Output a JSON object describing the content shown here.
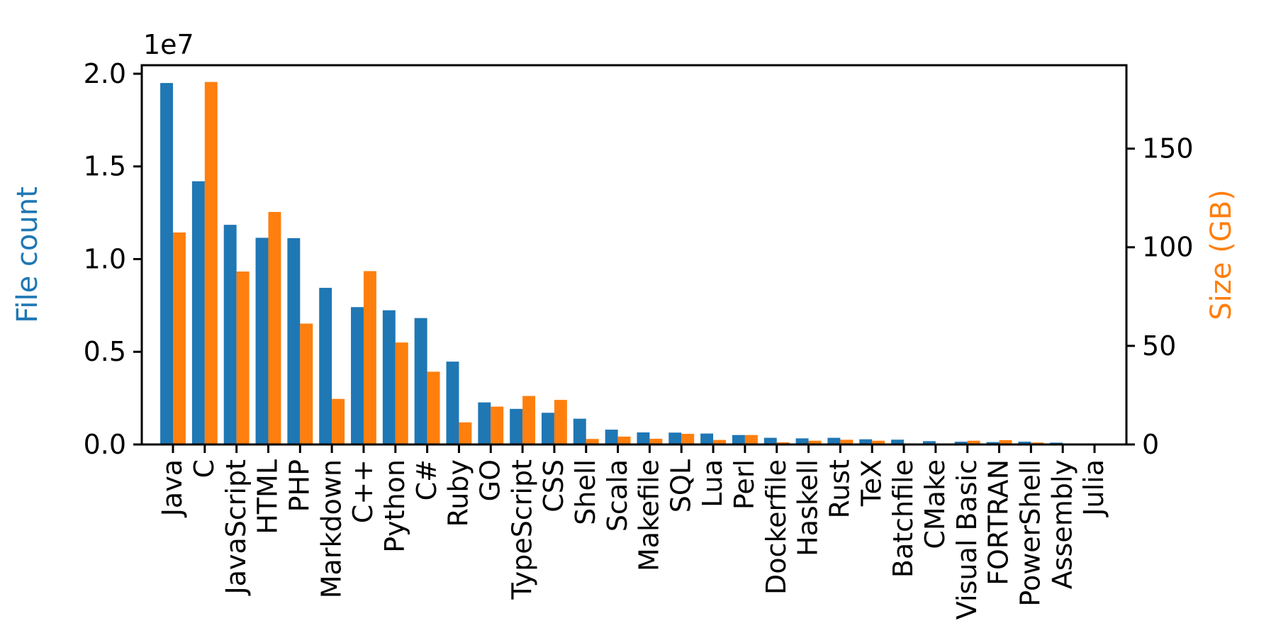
{
  "figure": {
    "background": "#ffffff",
    "text_color": "#000000"
  },
  "chart_data": {
    "type": "bar",
    "subtype": "grouped-dual-axis",
    "title": "",
    "grid": false,
    "legend_position": "none",
    "categories": [
      "Java",
      "C",
      "JavaScript",
      "HTML",
      "PHP",
      "Markdown",
      "C++",
      "Python",
      "C#",
      "Ruby",
      "GO",
      "TypeScript",
      "CSS",
      "Shell",
      "Scala",
      "Makefile",
      "SQL",
      "Lua",
      "Perl",
      "Dockerfile",
      "Haskell",
      "Rust",
      "TeX",
      "Batchfile",
      "CMake",
      "Visual Basic",
      "FORTRAN",
      "PowerShell",
      "Assembly",
      "Julia"
    ],
    "series": [
      {
        "name": "File count",
        "axis": "left",
        "color": "#1f77b4",
        "values": [
          19500000,
          14200000,
          11850000,
          11150000,
          11130000,
          8450000,
          7410000,
          7240000,
          6820000,
          4470000,
          2270000,
          1920000,
          1710000,
          1390000,
          800000,
          650000,
          640000,
          590000,
          510000,
          360000,
          330000,
          360000,
          280000,
          260000,
          180000,
          150000,
          130000,
          150000,
          100000,
          50000
        ]
      },
      {
        "name": "Size (GB)",
        "axis": "right",
        "color": "#ff7f0e",
        "values": [
          107.5,
          183.8,
          87.7,
          117.9,
          61.3,
          23.1,
          87.9,
          51.7,
          36.9,
          11.2,
          19.2,
          24.6,
          22.6,
          2.8,
          4.0,
          2.9,
          5.4,
          2.3,
          4.8,
          1.1,
          1.9,
          2.4,
          1.9,
          0.5,
          0.4,
          1.9,
          2.2,
          1.0,
          0.5,
          0.2
        ]
      }
    ],
    "left_axis": {
      "label": "File count",
      "label_color": "#1f77b4",
      "offset_text": "1e7",
      "tick_labels": [
        "0.0",
        "0.5",
        "1.0",
        "1.5",
        "2.0"
      ],
      "tick_values": [
        0,
        5000000,
        10000000,
        15000000,
        20000000
      ],
      "ylim": [
        0,
        20460000
      ]
    },
    "right_axis": {
      "label": "Size (GB)",
      "label_color": "#ff7f0e",
      "tick_labels": [
        "0",
        "50",
        "100",
        "150"
      ],
      "tick_values": [
        0,
        50,
        100,
        150
      ],
      "ylim": [
        0,
        192.3
      ]
    },
    "x_axis": {
      "label": "",
      "tick_label_rotation_deg": 90
    }
  }
}
